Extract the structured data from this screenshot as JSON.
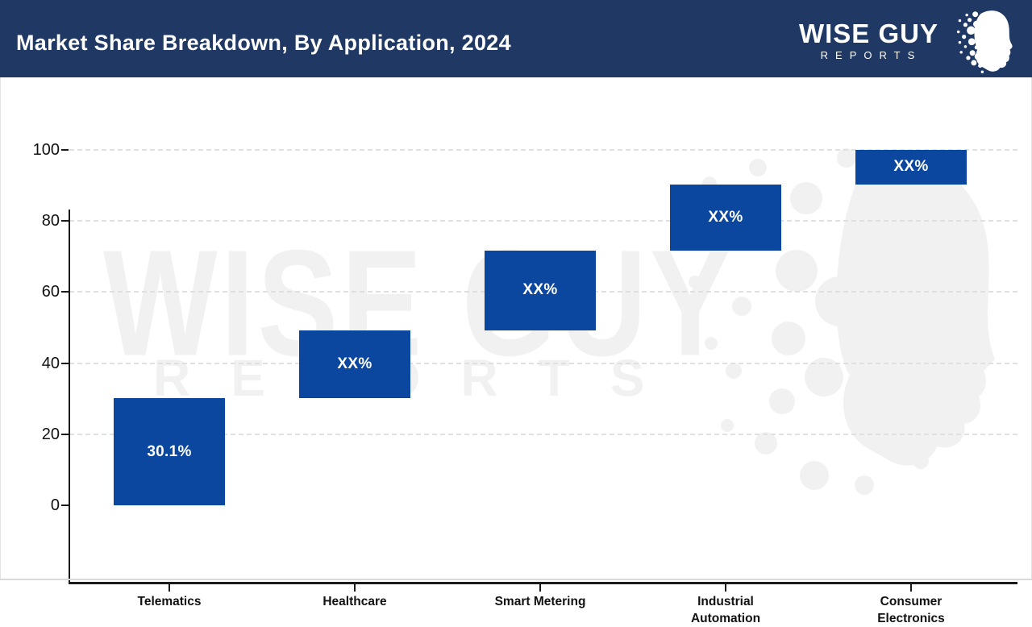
{
  "header": {
    "title": "Market Share Breakdown, By Application, 2024",
    "logo": {
      "name": "WISE GUY",
      "tagline": "REPORTS"
    }
  },
  "watermark": {
    "name": "WISE GUY",
    "tagline": "REPORTS"
  },
  "chart_data": {
    "type": "bar",
    "variant": "floating-waterfall-bars",
    "title": "Market Share Breakdown, By Application, 2024",
    "categories": [
      "Telematics",
      "Healthcare",
      "Smart Metering",
      "Industrial Automation",
      "Consumer Electronics"
    ],
    "category_label_lines": [
      [
        "Telematics"
      ],
      [
        "Healthcare"
      ],
      [
        "Smart Metering"
      ],
      [
        "Industrial",
        "Automation"
      ],
      [
        "Consumer",
        "Electronics"
      ]
    ],
    "segments": [
      {
        "category": "Telematics",
        "start": 0,
        "end": 30.1,
        "label": "30.1%"
      },
      {
        "category": "Healthcare",
        "start": 30.1,
        "end": 49.2,
        "label": "XX%"
      },
      {
        "category": "Smart Metering",
        "start": 49.2,
        "end": 71.7,
        "label": "XX%"
      },
      {
        "category": "Industrial Automation",
        "start": 71.7,
        "end": 90.3,
        "label": "XX%"
      },
      {
        "category": "Consumer Electronics",
        "start": 90.3,
        "end": 100,
        "label": "XX%"
      }
    ],
    "xlabel": "",
    "ylabel": "",
    "yticks": [
      0,
      20,
      40,
      60,
      80,
      100
    ],
    "ylim": [
      0,
      105
    ],
    "grid": "horizontal-dashed",
    "legend": "none",
    "bar_color": "#0b479e",
    "bar_label_color": "#ffffff"
  },
  "colors": {
    "header_background": "#1f3864",
    "bar_blue": "#0b479e",
    "axis_text": "#111111",
    "gridline": "#e0e0e0",
    "watermark": "#f1f1f1",
    "footer_line": "#d9d9d9"
  }
}
